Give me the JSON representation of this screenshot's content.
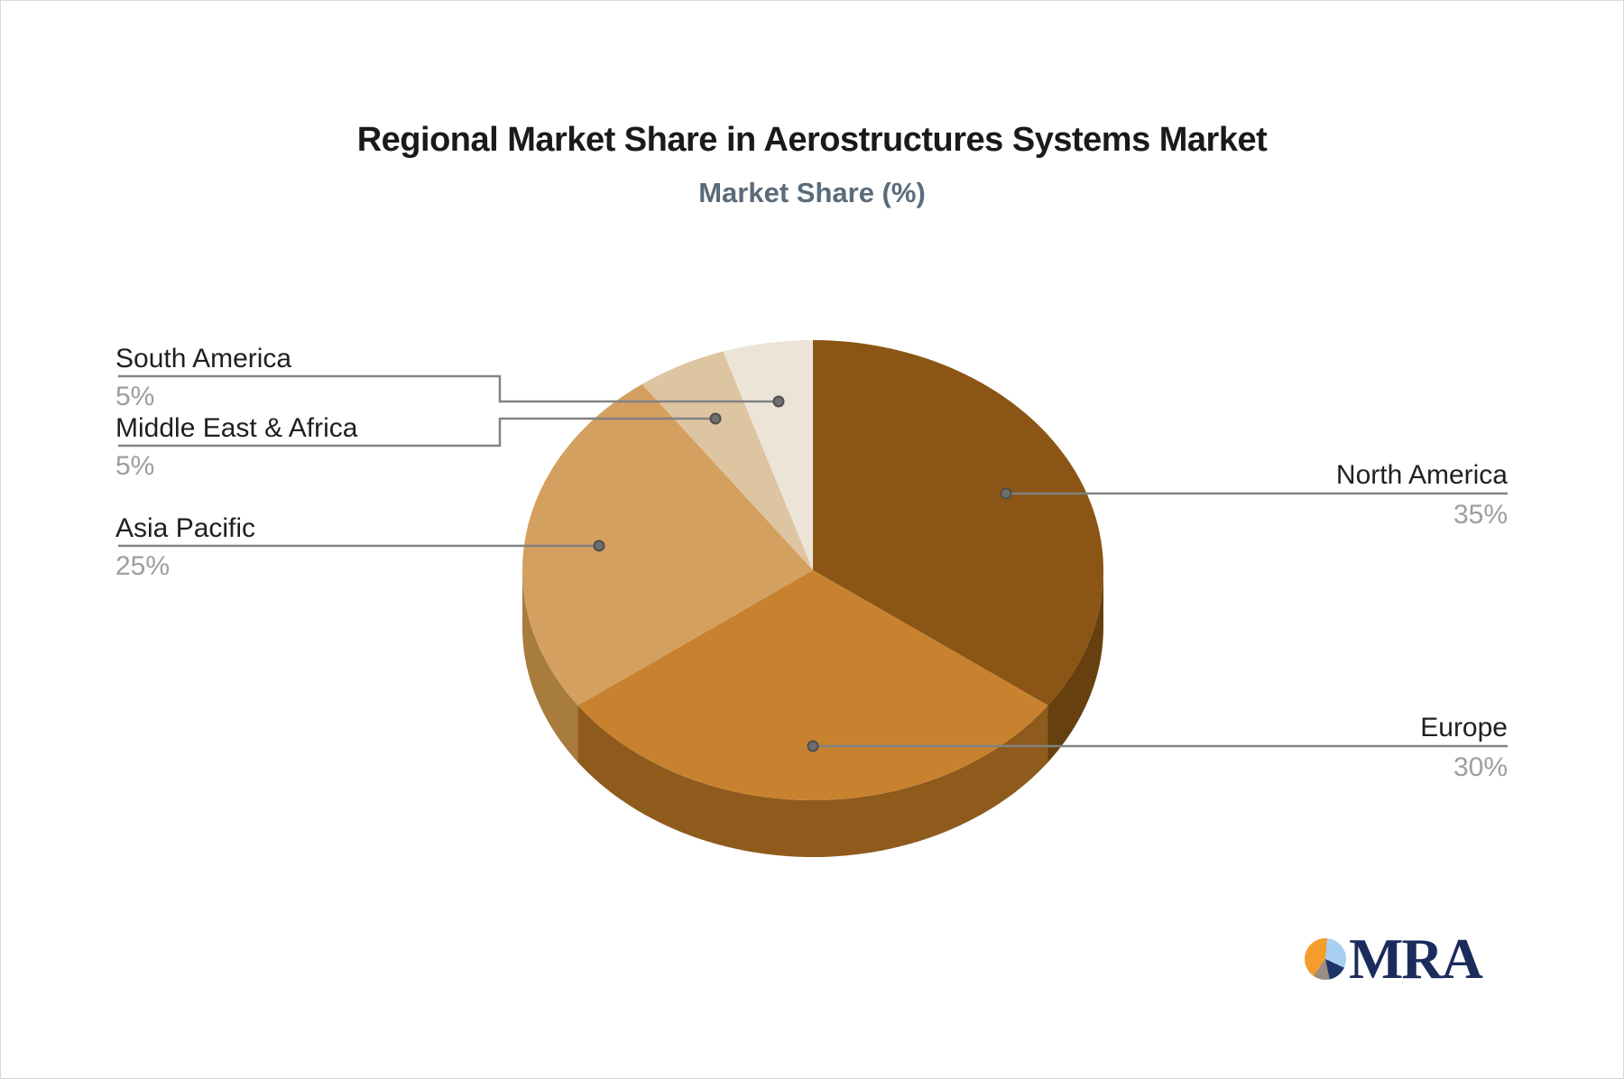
{
  "chart_data": {
    "type": "pie",
    "is_3d": true,
    "title": "Regional Market Share in Aerostructures Systems Market",
    "subtitle": "Market Share (%)",
    "subtitle_color": "#5B6B7A",
    "unit": "%",
    "start_angle_deg": 0,
    "direction": "clockwise",
    "legend_position": "none",
    "categories": [
      "North America",
      "Europe",
      "Asia Pacific",
      "Middle East & Africa",
      "South America"
    ],
    "values": [
      35,
      30,
      25,
      5,
      5
    ],
    "slices": [
      {
        "name": "North America",
        "value": 35,
        "label": "35%",
        "color": "#8B5615",
        "side_color": "#66400F"
      },
      {
        "name": "Europe",
        "value": 30,
        "label": "30%",
        "color": "#C8822F",
        "side_color": "#8F5B1D"
      },
      {
        "name": "Asia Pacific",
        "value": 25,
        "label": "25%",
        "color": "#D4A05F",
        "side_color": "#A87C3C"
      },
      {
        "name": "Middle East & Africa",
        "value": 5,
        "label": "5%",
        "color": "#DEC5A1",
        "side_color": "#B89B77"
      },
      {
        "name": "South America",
        "value": 5,
        "label": "5%",
        "color": "#EDE4D8",
        "side_color": "#C9BCA9"
      }
    ],
    "leader_line_color": "#828282",
    "leader_dot_color": "#6F6F6F"
  },
  "logo": {
    "text": "MRA",
    "colors": {
      "orange": "#F59D2C",
      "light_blue": "#A9CFF2",
      "navy": "#1F3468",
      "gray": "#998F85",
      "text_color": "#1B2B5C"
    }
  }
}
